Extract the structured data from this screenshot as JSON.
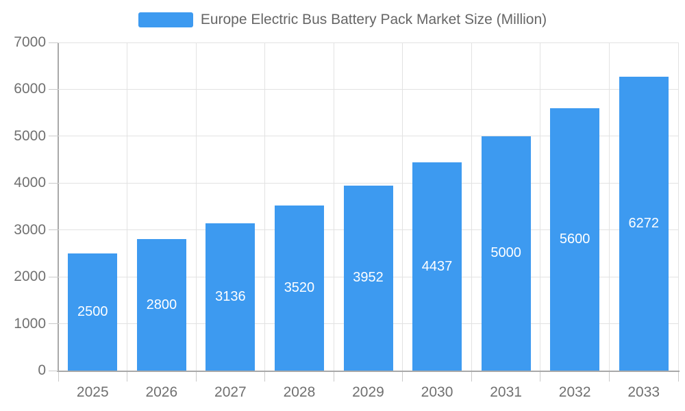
{
  "legend": {
    "label": "Europe Electric Bus Battery Pack Market Size (Million)",
    "swatch_color": "#3d9af0"
  },
  "chart_data": {
    "type": "bar",
    "title": "Europe Electric Bus Battery Pack Market Size (Million)",
    "categories": [
      "2025",
      "2026",
      "2027",
      "2028",
      "2029",
      "2030",
      "2031",
      "2032",
      "2033"
    ],
    "values": [
      2500,
      2800,
      3136,
      3520,
      3952,
      4437,
      5000,
      5600,
      6272
    ],
    "xlabel": "",
    "ylabel": "",
    "ylim": [
      0,
      7000
    ],
    "yticks": [
      0,
      1000,
      2000,
      3000,
      4000,
      5000,
      6000,
      7000
    ],
    "grid": true,
    "legend_position": "top-center",
    "bar_color": "#3d9af0",
    "value_label_color": "#ffffff",
    "value_label_position": "inside-center"
  }
}
